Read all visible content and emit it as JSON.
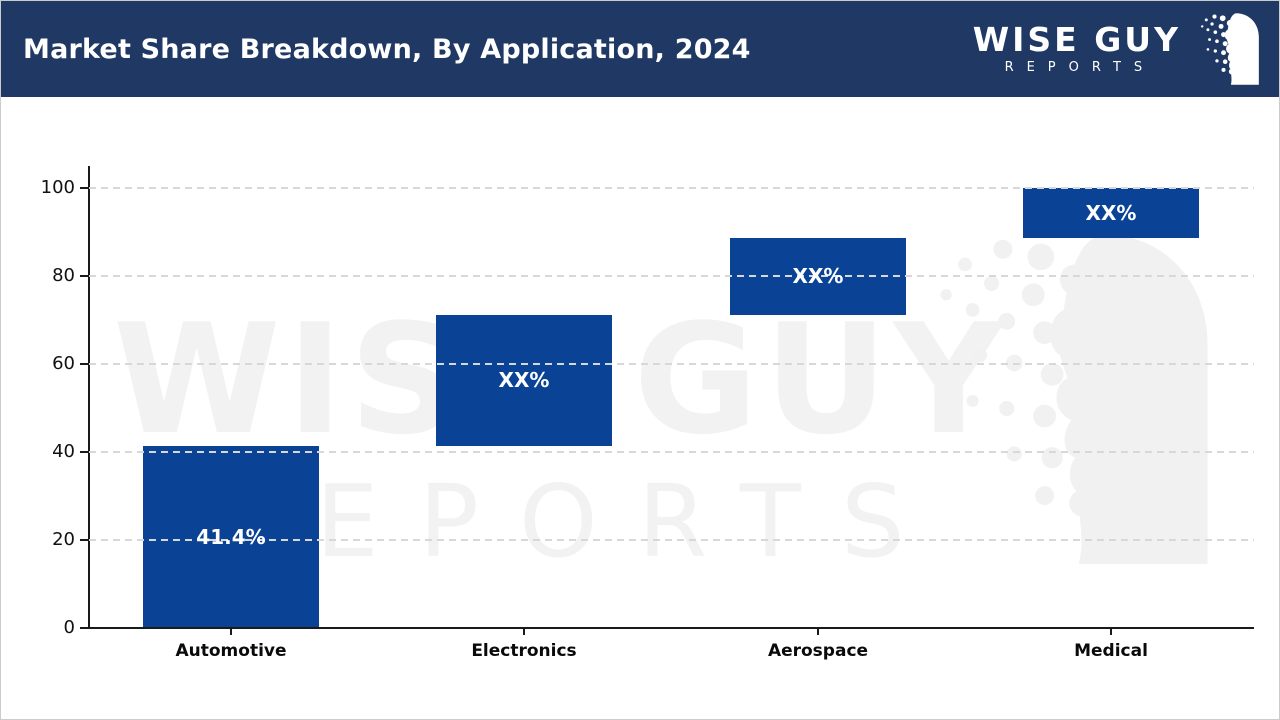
{
  "header": {
    "title": "Market Share Breakdown, By Application, 2024",
    "bg_color": "#1f3864",
    "logo": {
      "line1": "WISE GUY",
      "line2": "REPORTS"
    }
  },
  "watermark": {
    "line1": "WISE GUY",
    "line2": "REPORTS"
  },
  "chart_data": {
    "type": "bar",
    "subtype": "waterfall",
    "title": "Market Share Breakdown, By Application, 2024",
    "categories": [
      "Automotive",
      "Electronics",
      "Aerospace",
      "Medical"
    ],
    "segments": [
      {
        "category": "Automotive",
        "start": 0,
        "end": 41.4,
        "label": "41.4%"
      },
      {
        "category": "Electronics",
        "start": 41.4,
        "end": 71.2,
        "label": "XX%"
      },
      {
        "category": "Aerospace",
        "start": 71.2,
        "end": 88.6,
        "label": "XX%"
      },
      {
        "category": "Medical",
        "start": 88.6,
        "end": 100,
        "label": "XX%"
      }
    ],
    "xlabel": "",
    "ylabel": "",
    "ylim": [
      0,
      100
    ],
    "yticks": [
      0,
      20,
      40,
      60,
      80,
      100
    ],
    "grid": "dashed-horizontal",
    "legend": "none",
    "bar_color": "#0a4296",
    "bar_label_color": "#ffffff",
    "axis_color": "#1a1a1a",
    "gridline_color": "#d8d8d8"
  }
}
